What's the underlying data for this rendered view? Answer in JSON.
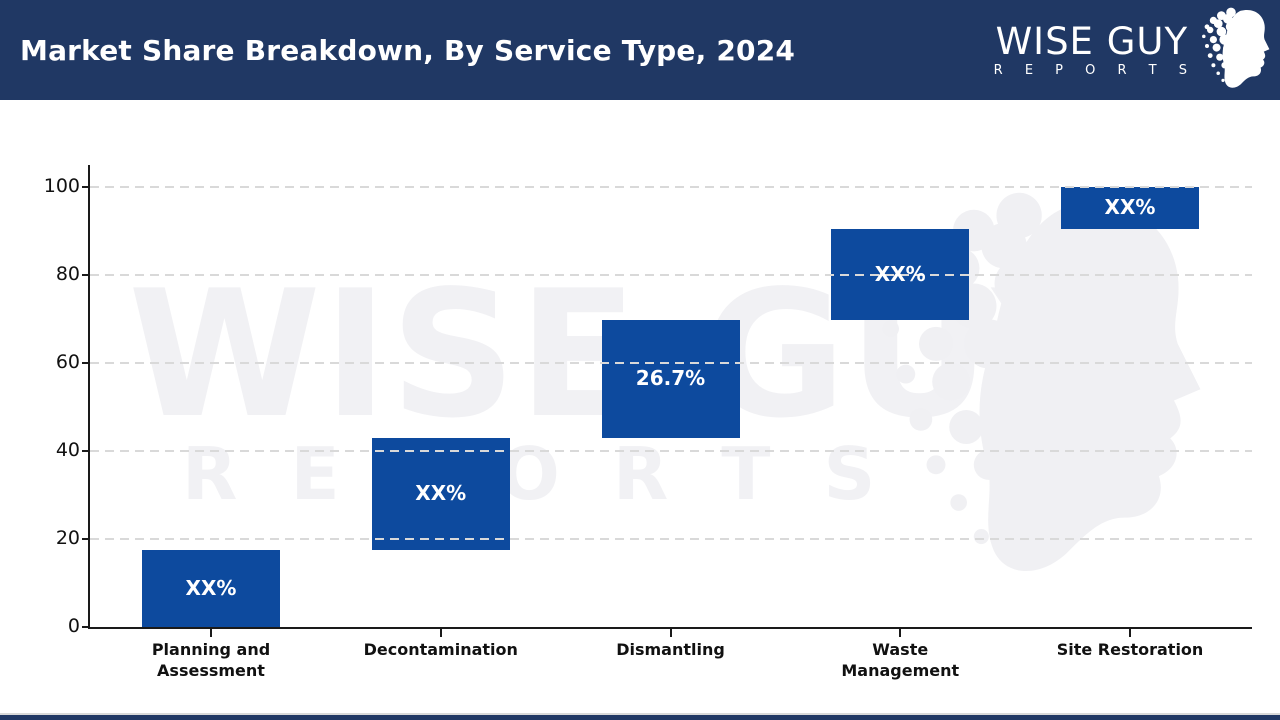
{
  "header": {
    "title": "Market Share Breakdown, By Service Type, 2024",
    "logo": {
      "line1": "WISE GUY",
      "line2": "R E P O R T S"
    }
  },
  "watermark": {
    "line1": "WISE GUY",
    "line2": "R E P O R T S"
  },
  "chart_data": {
    "type": "bar",
    "subtype": "waterfall",
    "title": "Market Share Breakdown, By Service Type, 2024",
    "categories": [
      "Planning and Assessment",
      "Decontamination",
      "Dismantling",
      "Waste Management",
      "Site Restoration"
    ],
    "segments": [
      {
        "category": "Planning and Assessment",
        "start": 0,
        "end": 17.5,
        "label": "XX%"
      },
      {
        "category": "Decontamination",
        "start": 17.5,
        "end": 43,
        "label": "XX%"
      },
      {
        "category": "Dismantling",
        "start": 43,
        "end": 69.7,
        "label": "26.7%"
      },
      {
        "category": "Waste Management",
        "start": 69.7,
        "end": 90.4,
        "label": "XX%"
      },
      {
        "category": "Site Restoration",
        "start": 90.4,
        "end": 100,
        "label": "XX%"
      }
    ],
    "ylim": [
      0,
      100
    ],
    "yticks": [
      0,
      20,
      40,
      60,
      80,
      100
    ],
    "xlabel": "",
    "ylabel": "",
    "grid": "horizontal-dashed",
    "legend": "none",
    "bar_color": "#0d4a9e",
    "label_color": "#ffffff"
  },
  "colors": {
    "header_bg": "#203864",
    "footer_bg": "#203864",
    "bar": "#0d4a9e",
    "watermark": "#f1f1f4"
  }
}
